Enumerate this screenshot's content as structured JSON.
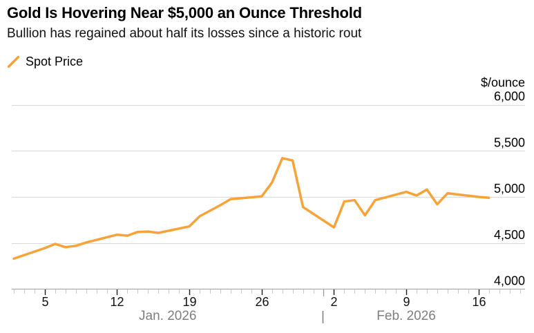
{
  "header": {
    "title": "Gold Is Hovering Near $5,000 an Ounce Threshold",
    "subtitle": "Bullion has regained about half its losses since a historic rout"
  },
  "legend": {
    "items": [
      {
        "label": "Spot Price",
        "swatch_icon": "orange-slash-line-icon"
      }
    ]
  },
  "colors": {
    "line": "#F7A339",
    "gridline": "#D9D9D9",
    "axis": "#ADADAD",
    "minor_tick": "#C8C8C8",
    "major_tick": "#1A1A1A",
    "tick_label": "#111111",
    "month_label": "#7E7E7E",
    "text": "#000000",
    "background": "#FFFFFF"
  },
  "chart_data": {
    "type": "line",
    "title": "Gold Is Hovering Near $5,000 an Ounce Threshold",
    "subtitle": "Bullion has regained about half its losses since a historic rout",
    "unit_label": "$/ounce",
    "ylim": [
      4000,
      6000
    ],
    "grid": true,
    "legend_position": "top-left",
    "y_ticks": [
      {
        "value": 4000,
        "label": "4,000"
      },
      {
        "value": 4500,
        "label": "4,500"
      },
      {
        "value": 5000,
        "label": "5,000"
      },
      {
        "value": 5500,
        "label": "5,500"
      },
      {
        "value": 6000,
        "label": "6,000"
      }
    ],
    "x_axis": {
      "note": "doy = day number of 2026 counted from Jan 1 = 1 (Feb d = 31 + d)",
      "tick_start_doy": 2,
      "tick_end_doy": 51,
      "major_ticks": [
        {
          "doy": 5,
          "label": "5"
        },
        {
          "doy": 12,
          "label": "12"
        },
        {
          "doy": 19,
          "label": "19"
        },
        {
          "doy": 26,
          "label": "26"
        },
        {
          "doy": 33,
          "label": "2"
        },
        {
          "doy": 40,
          "label": "9"
        },
        {
          "doy": 47,
          "label": "16"
        }
      ],
      "month_boundary_doy": 32,
      "separator_glyph": "|",
      "month_labels": [
        {
          "label": "Jan. 2026",
          "center_doy": 16.9
        },
        {
          "label": "Feb. 2026",
          "center_doy": 40
        }
      ]
    },
    "series": [
      {
        "name": "Spot Price",
        "points": [
          {
            "date": "Jan 2",
            "doy": 2,
            "value": 4330
          },
          {
            "date": "Jan 5",
            "doy": 5,
            "value": 4445
          },
          {
            "date": "Jan 6",
            "doy": 6,
            "value": 4490
          },
          {
            "date": "Jan 7",
            "doy": 7,
            "value": 4455
          },
          {
            "date": "Jan 8",
            "doy": 8,
            "value": 4470
          },
          {
            "date": "Jan 9",
            "doy": 9,
            "value": 4505
          },
          {
            "date": "Jan 12",
            "doy": 12,
            "value": 4590
          },
          {
            "date": "Jan 13",
            "doy": 13,
            "value": 4580
          },
          {
            "date": "Jan 14",
            "doy": 14,
            "value": 4620
          },
          {
            "date": "Jan 15",
            "doy": 15,
            "value": 4625
          },
          {
            "date": "Jan 16",
            "doy": 16,
            "value": 4610
          },
          {
            "date": "Jan 19",
            "doy": 19,
            "value": 4680
          },
          {
            "date": "Jan 20",
            "doy": 20,
            "value": 4790
          },
          {
            "date": "Jan 21",
            "doy": 21,
            "value": 4850
          },
          {
            "date": "Jan 22",
            "doy": 22,
            "value": 4910
          },
          {
            "date": "Jan 23",
            "doy": 23,
            "value": 4975
          },
          {
            "date": "Jan 26",
            "doy": 26,
            "value": 5005
          },
          {
            "date": "Jan 27",
            "doy": 27,
            "value": 5155
          },
          {
            "date": "Jan 28",
            "doy": 28,
            "value": 5420
          },
          {
            "date": "Jan 29",
            "doy": 29,
            "value": 5395
          },
          {
            "date": "Jan 30",
            "doy": 30,
            "value": 4890
          },
          {
            "date": "Feb 2",
            "doy": 33,
            "value": 4670
          },
          {
            "date": "Feb 3",
            "doy": 34,
            "value": 4950
          },
          {
            "date": "Feb 4",
            "doy": 35,
            "value": 4965
          },
          {
            "date": "Feb 5",
            "doy": 36,
            "value": 4800
          },
          {
            "date": "Feb 6",
            "doy": 37,
            "value": 4965
          },
          {
            "date": "Feb 9",
            "doy": 40,
            "value": 5055
          },
          {
            "date": "Feb 10",
            "doy": 41,
            "value": 5015
          },
          {
            "date": "Feb 11",
            "doy": 42,
            "value": 5080
          },
          {
            "date": "Feb 12",
            "doy": 43,
            "value": 4920
          },
          {
            "date": "Feb 13",
            "doy": 44,
            "value": 5040
          },
          {
            "date": "Feb 16",
            "doy": 47,
            "value": 5000
          },
          {
            "date": "Feb 17",
            "doy": 48,
            "value": 4990
          }
        ]
      }
    ]
  }
}
